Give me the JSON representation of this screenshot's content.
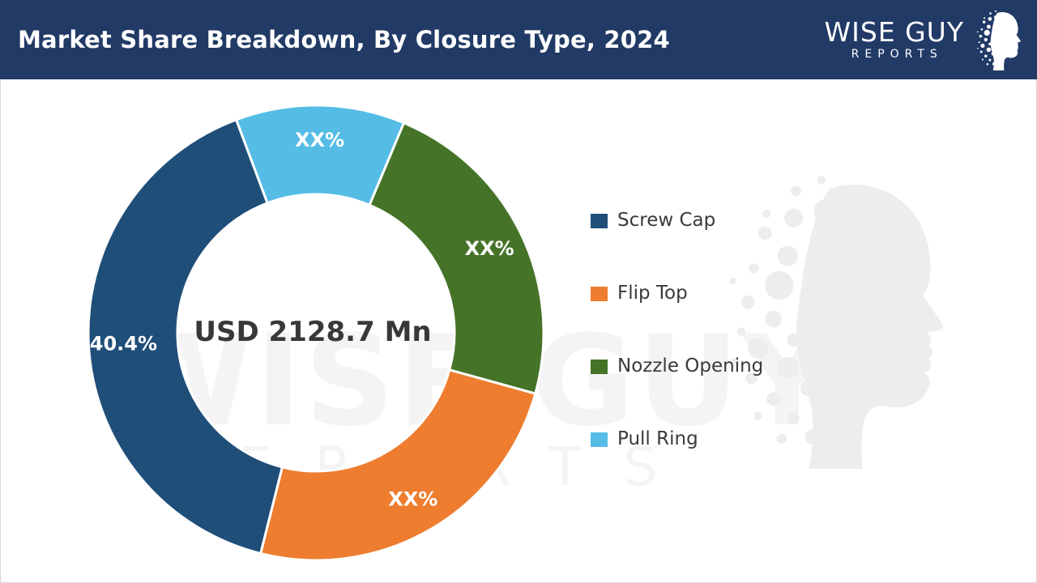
{
  "header": {
    "title": "Market Share Breakdown, By Closure Type, 2024",
    "logo": {
      "line1": "WISE GUY",
      "line2": "REPORTS"
    }
  },
  "watermark": {
    "line1": "WISE GUY",
    "line2": "REPORTS"
  },
  "chart_data": {
    "type": "pie",
    "subtype": "donut",
    "title": "Market Share Breakdown, By Closure Type, 2024",
    "center_label": "USD 2128.7 Mn",
    "unit": "percent",
    "start_angle_deg_clockwise_from_top": 339.5,
    "direction": "counterclockwise",
    "inner_radius_ratio": 0.61,
    "legend_position": "right",
    "grid": false,
    "segments": [
      {
        "name": "Screw Cap",
        "value_pct": 40.4,
        "label": "40.4%",
        "color": "#1F4E79"
      },
      {
        "name": "Flip Top",
        "value_pct": 24.6,
        "label": "XX%",
        "color": "#EE7D30"
      },
      {
        "name": "Nozzle Opening",
        "value_pct": 23.0,
        "label": "XX%",
        "color": "#457328"
      },
      {
        "name": "Pull Ring",
        "value_pct": 12.0,
        "label": "XX%",
        "color": "#55BCE6"
      }
    ],
    "colors": {
      "header_bg": "#213A66",
      "text": "#383838",
      "watermark": "#F4F4F6"
    }
  }
}
